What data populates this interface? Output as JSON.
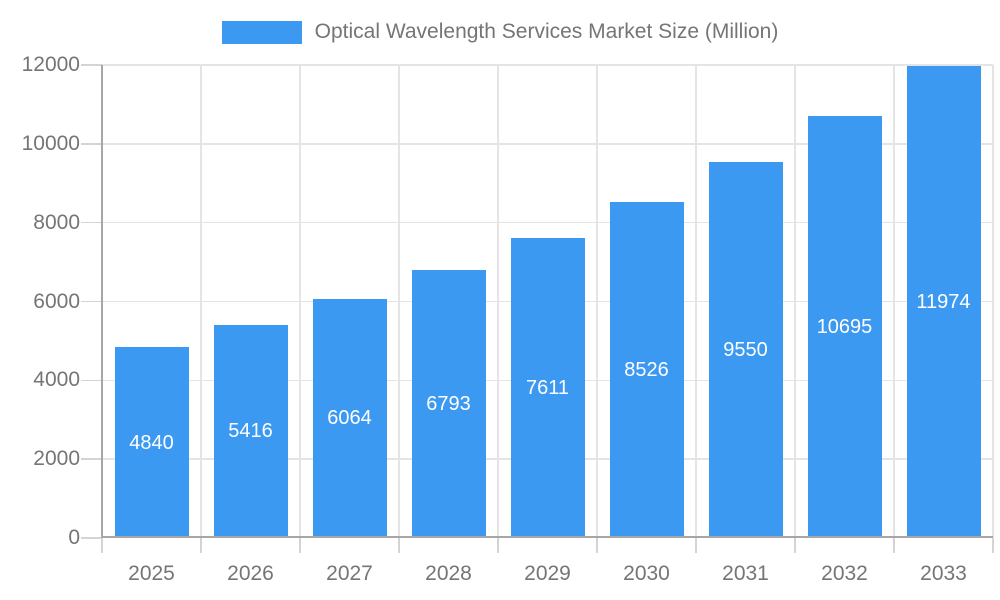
{
  "legend": {
    "label": "Optical Wavelength Services Market Size (Million)",
    "swatch_color": "#3b99f2"
  },
  "chart_data": {
    "type": "bar",
    "title": "Optical Wavelength Services Market Size (Million)",
    "categories": [
      "2025",
      "2026",
      "2027",
      "2028",
      "2029",
      "2030",
      "2031",
      "2032",
      "2033"
    ],
    "series": [
      {
        "name": "Optical Wavelength Services Market Size (Million)",
        "values": [
          4840,
          5416,
          6064,
          6793,
          7611,
          8526,
          9550,
          10695,
          11974
        ]
      }
    ],
    "xlabel": "",
    "ylabel": "",
    "ylim": [
      0,
      12000
    ],
    "yticks": [
      0,
      2000,
      4000,
      6000,
      8000,
      10000,
      12000
    ],
    "grid": true,
    "legend_position": "top",
    "value_labels": "inside-center",
    "colors": {
      "bar": "#3b99f2",
      "grid": "#e4e4e4",
      "tick": "#d4d4d4",
      "axis": "#a6a6a6",
      "text": "#757575",
      "value_label": "#ffffff",
      "background": "#ffffff"
    }
  }
}
